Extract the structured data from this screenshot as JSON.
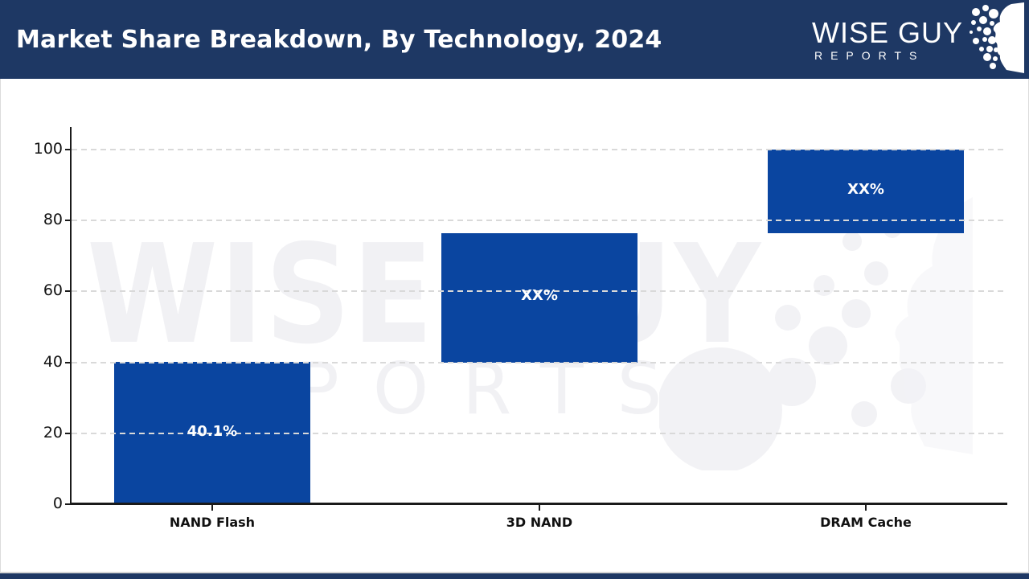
{
  "header": {
    "title": "Market Share Breakdown, By Technology, 2024",
    "bg_color": "#1e3864",
    "logo": {
      "line1": "WISE GUY",
      "line2": "REPORTS"
    }
  },
  "watermark": {
    "line1": "WISE GUY",
    "line2": "REPORTS"
  },
  "chart_data": {
    "type": "bar",
    "subtype": "floating-waterfall-segments",
    "title": "",
    "xlabel": "",
    "ylabel": "",
    "categories": [
      "NAND Flash",
      "3D NAND",
      "DRAM Cache"
    ],
    "segments": [
      {
        "category": "NAND Flash",
        "from": 0,
        "to": 40.1,
        "label": "40.1%"
      },
      {
        "category": "3D NAND",
        "from": 40,
        "to": 76.4,
        "label": "XX%"
      },
      {
        "category": "DRAM Cache",
        "from": 76.5,
        "to": 100,
        "label": "XX%"
      }
    ],
    "yticks": [
      0,
      20,
      40,
      60,
      80,
      100
    ],
    "ylim": [
      0,
      106
    ],
    "grid": "horizontal-dashed",
    "bar_color": "#0a45a0",
    "bar_label_color": "#ffffff",
    "grid_color": "#d9d9d9",
    "axis_color": "#1a1a1a"
  },
  "footer": {
    "bg_color": "#1e3864"
  }
}
